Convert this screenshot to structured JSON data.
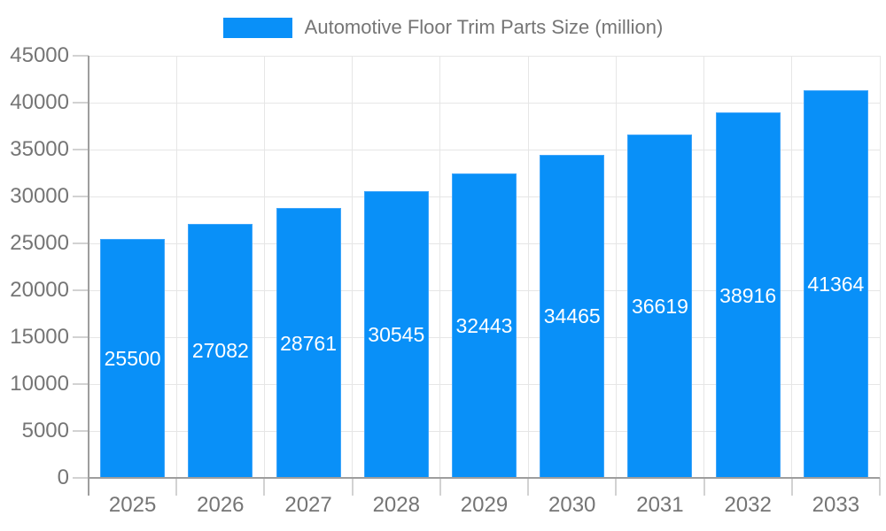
{
  "legend": {
    "series_label": "Automotive Floor Trim Parts Size (million)"
  },
  "chart_data": {
    "type": "bar",
    "title": "",
    "series_name": "Automotive Floor Trim Parts Size (million)",
    "categories": [
      "2025",
      "2026",
      "2027",
      "2028",
      "2029",
      "2030",
      "2031",
      "2032",
      "2033"
    ],
    "values": [
      25500,
      27082,
      28761,
      30545,
      32443,
      34465,
      36619,
      38916,
      41364
    ],
    "value_labels": [
      "25500",
      "27082",
      "28761",
      "30545",
      "32443",
      "34465",
      "36619",
      "38916",
      "41364"
    ],
    "xlabel": "",
    "ylabel": "",
    "ylim": [
      0,
      45000
    ],
    "ytick_step": 5000,
    "ytick_labels": [
      "0",
      "5000",
      "10000",
      "15000",
      "20000",
      "25000",
      "30000",
      "35000",
      "40000",
      "45000"
    ],
    "grid": true,
    "legend_position": "top",
    "colors": {
      "bar": "#0990f8",
      "bar_border": "#3ea5fb",
      "value_label": "#ffffff",
      "axis_text": "#757575",
      "gridline": "#e6e6e6",
      "axis_line": "#9e9e9e",
      "tick": "#d2d2d2",
      "background": "#ffffff"
    }
  }
}
